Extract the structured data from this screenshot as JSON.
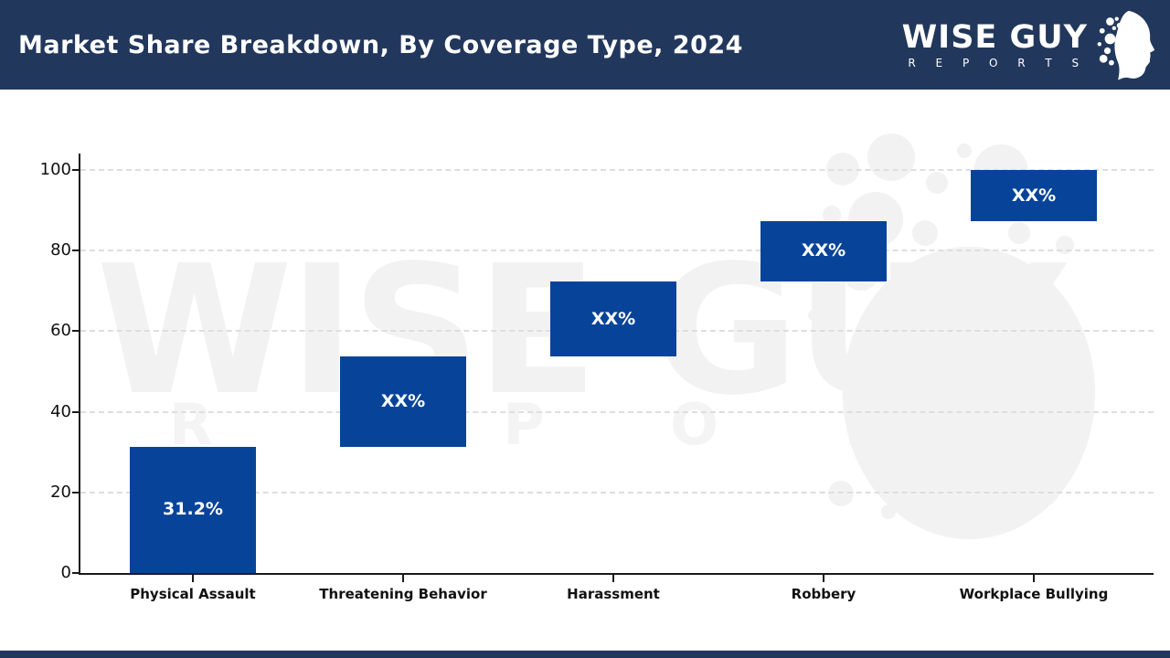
{
  "header": {
    "title": "Market Share Breakdown, By Coverage Type, 2024",
    "logo": {
      "line1": "WISE GUY",
      "line2": "R E P O R T S"
    }
  },
  "watermark": {
    "line1": "WISE GUY",
    "line2": "R E P O R T S"
  },
  "colors": {
    "header_bg": "#22375c",
    "bar": "#074499",
    "bar_label": "#ffffff",
    "gridline": "#dedede",
    "axis": "#1a1a1a",
    "watermark": "#f2f2f2"
  },
  "chart_data": {
    "type": "bar",
    "subtype": "waterfall",
    "title": "Market Share Breakdown, By Coverage Type, 2024",
    "xlabel": "",
    "ylabel": "",
    "ylim": [
      0,
      100
    ],
    "yticks": [
      0,
      20,
      40,
      60,
      80,
      100
    ],
    "grid": "horizontal-dashed",
    "legend": "none",
    "categories": [
      "Physical Assault",
      "Threatening Behavior",
      "Harassment",
      "Robbery",
      "Workplace Bullying"
    ],
    "segments": [
      {
        "category": "Physical Assault",
        "start": 0,
        "end": 31.2,
        "label": "31.2%"
      },
      {
        "category": "Threatening Behavior",
        "start": 31.2,
        "end": 53.8,
        "label": "XX%"
      },
      {
        "category": "Harassment",
        "start": 53.8,
        "end": 72.4,
        "label": "XX%"
      },
      {
        "category": "Robbery",
        "start": 72.4,
        "end": 87.2,
        "label": "XX%"
      },
      {
        "category": "Workplace Bullying",
        "start": 87.2,
        "end": 100,
        "label": "XX%"
      }
    ]
  }
}
